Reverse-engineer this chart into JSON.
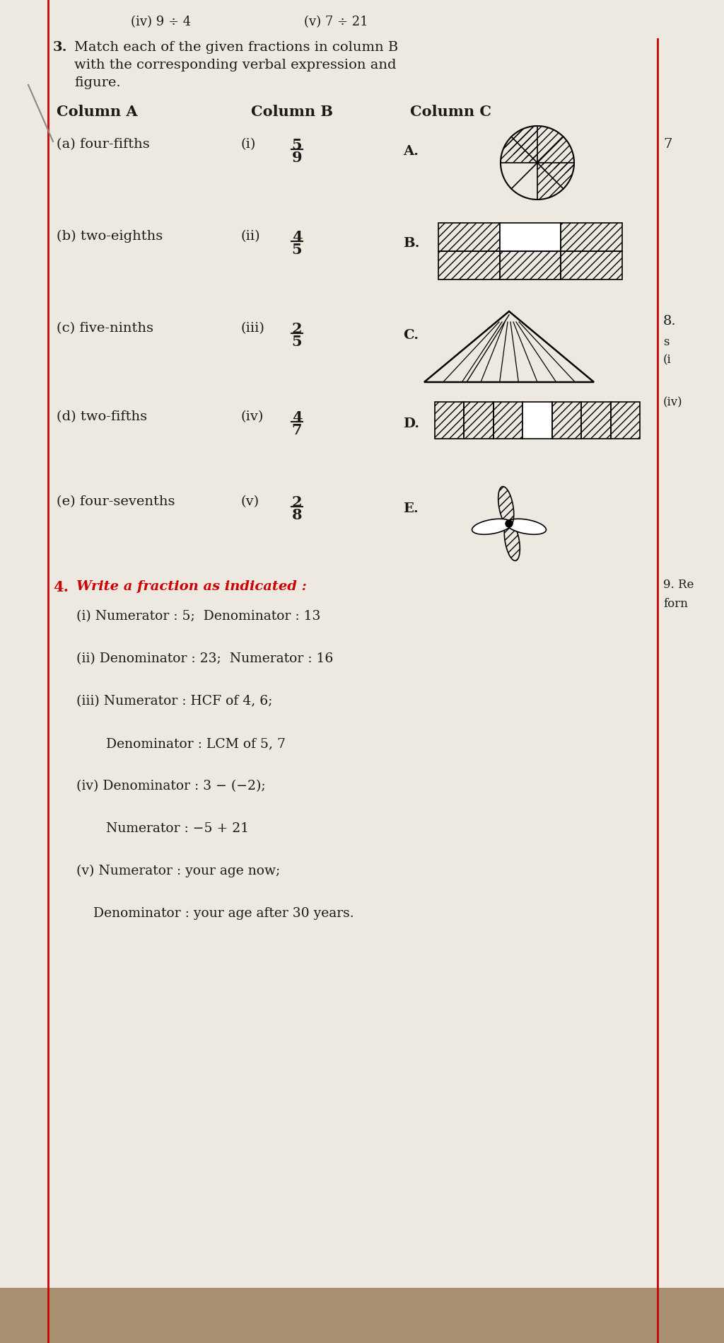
{
  "bg_color": "#c8bfb0",
  "page_bg": "#ede8e0",
  "text_color": "#1a1a1a",
  "red_color": "#cc0000",
  "col_a": [
    "(a) four-fifths",
    "(b) two-eighths",
    "(c) five-ninths",
    "(d) two-fifths",
    "(e) four-sevenths"
  ],
  "col_b_labels": [
    "(i)",
    "(ii)",
    "(iii)",
    "(iv)",
    "(v)"
  ],
  "col_b_fracs_num": [
    "5",
    "4",
    "2",
    "4",
    "2"
  ],
  "col_b_fracs_den": [
    "9",
    "5",
    "5",
    "7",
    "8"
  ],
  "col_c_labels": [
    "A.",
    "B.",
    "C.",
    "D.",
    "E."
  ],
  "q4_items": [
    "(i) Numerator : 5;  Denominator : 13",
    "(ii) Denominator : 23;  Numerator : 16",
    "(iii) Numerator : HCF of 4, 6;",
    "       Denominator : LCM of 5, 7",
    "(iv) Denominator : 3 − (−2);",
    "       Numerator : −5 + 21",
    "(v) Numerator : your age now;",
    "    Denominator : your age after 30 years."
  ]
}
